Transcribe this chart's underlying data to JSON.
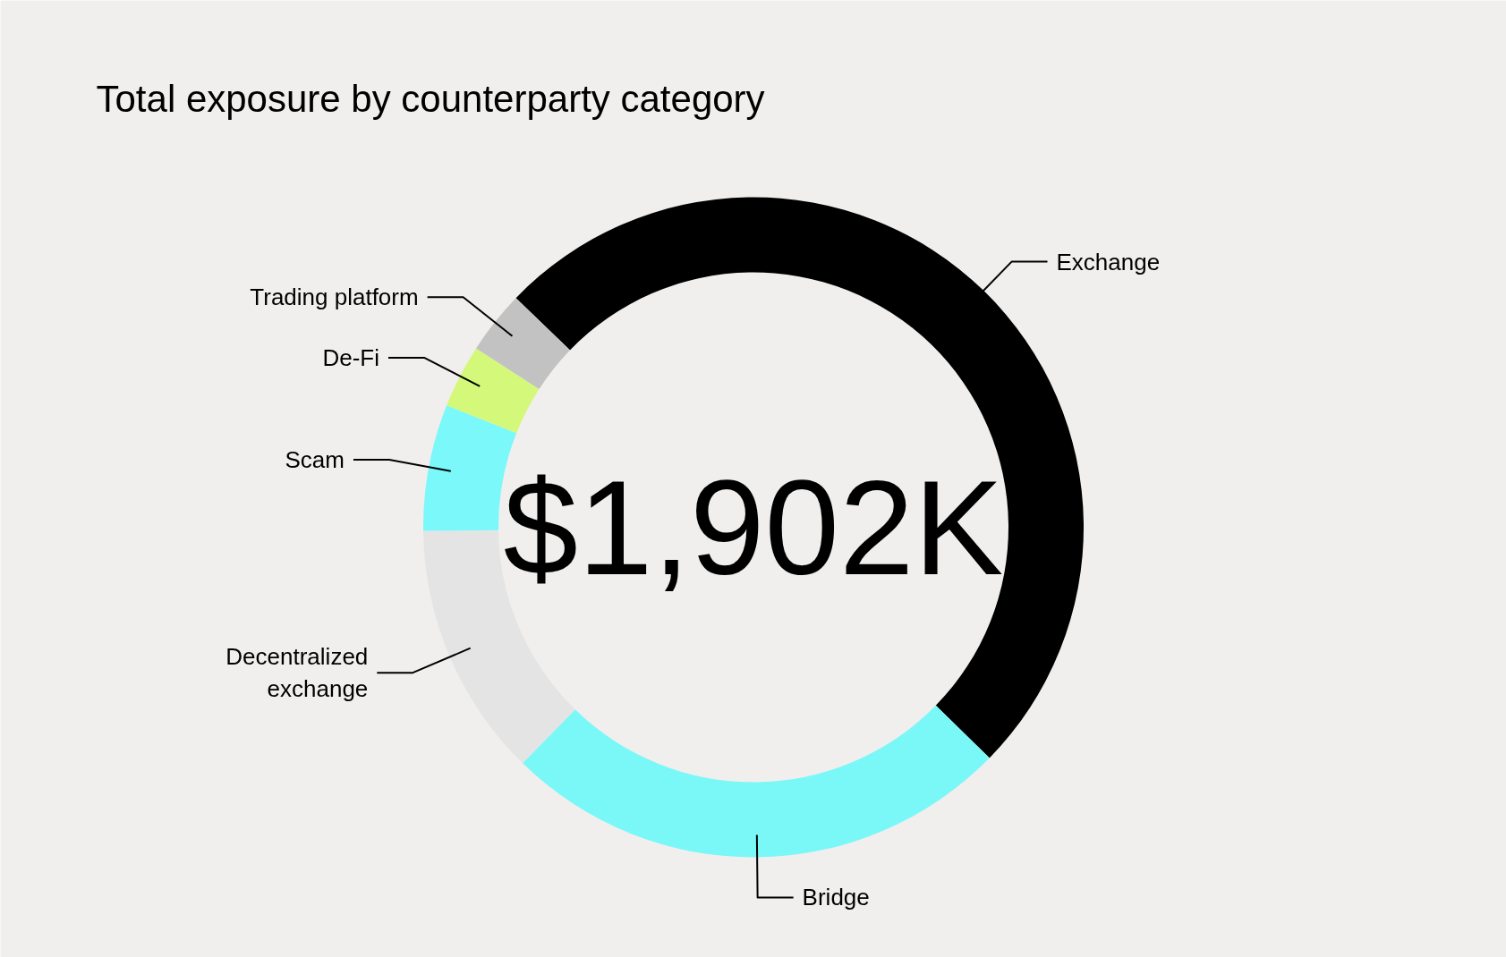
{
  "chart_data": {
    "type": "donut",
    "title": "Total exposure by counterparty category",
    "categories": [
      "Exchange",
      "Bridge",
      "Decentralized exchange",
      "Scam",
      "De-Fi",
      "Trading platform"
    ],
    "values": [
      50.1,
      25,
      12.5,
      6.2,
      3.1,
      3.1
    ],
    "colors": [
      "#000000",
      "#7af8f8",
      "#e4e4e4",
      "#7af8fa",
      "#d4f97a",
      "#c2c2c2"
    ],
    "annotations": [
      "$1,902K"
    ]
  }
}
